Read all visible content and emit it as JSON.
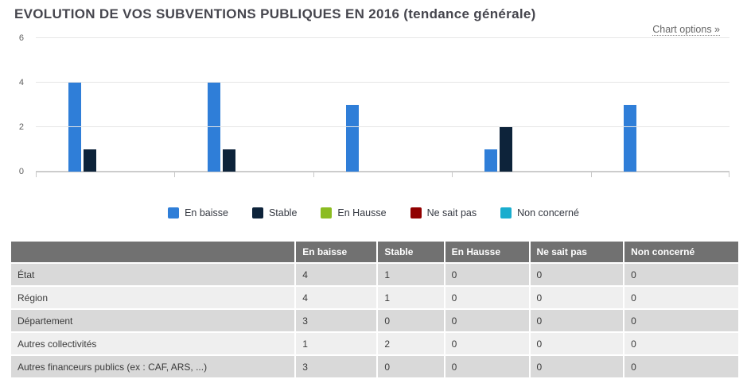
{
  "header": {
    "title": "EVOLUTION DE VOS SUBVENTIONS PUBLIQUES EN 2016 (tendance générale)",
    "chart_options_label": "Chart options »"
  },
  "chart_data": {
    "type": "bar",
    "title": "EVOLUTION DE VOS SUBVENTIONS PUBLIQUES EN 2016 (tendance générale)",
    "categories": [
      "État",
      "Région",
      "Département",
      "Autres collectivités",
      "Autres financeurs publics (ex : CAF, ARS, ...)"
    ],
    "series": [
      {
        "name": "En baisse",
        "color": "#2f7ed8",
        "values": [
          4,
          4,
          3,
          1,
          3
        ]
      },
      {
        "name": "Stable",
        "color": "#0d233a",
        "values": [
          1,
          1,
          0,
          2,
          0
        ]
      },
      {
        "name": "En Hausse",
        "color": "#8bbc21",
        "values": [
          0,
          0,
          0,
          0,
          0
        ]
      },
      {
        "name": "Ne sait pas",
        "color": "#910000",
        "values": [
          0,
          0,
          0,
          0,
          0
        ]
      },
      {
        "name": "Non concerné",
        "color": "#1aadce",
        "values": [
          0,
          0,
          0,
          0,
          0
        ]
      }
    ],
    "xlabel": "",
    "ylabel": "",
    "ylim": [
      0,
      6
    ],
    "yticks": [
      0,
      2,
      4,
      6
    ],
    "grid": true,
    "legend_position": "bottom"
  },
  "table": {
    "headers": [
      "",
      "En baisse",
      "Stable",
      "En Hausse",
      "Ne sait pas",
      "Non concerné"
    ],
    "rows": [
      {
        "label": "État",
        "values": [
          4,
          1,
          0,
          0,
          0
        ]
      },
      {
        "label": "Région",
        "values": [
          4,
          1,
          0,
          0,
          0
        ]
      },
      {
        "label": "Département",
        "values": [
          3,
          0,
          0,
          0,
          0
        ]
      },
      {
        "label": "Autres collectivités",
        "values": [
          1,
          2,
          0,
          0,
          0
        ]
      },
      {
        "label": "Autres financeurs publics (ex : CAF, ARS, ...)",
        "values": [
          3,
          0,
          0,
          0,
          0
        ]
      }
    ]
  }
}
